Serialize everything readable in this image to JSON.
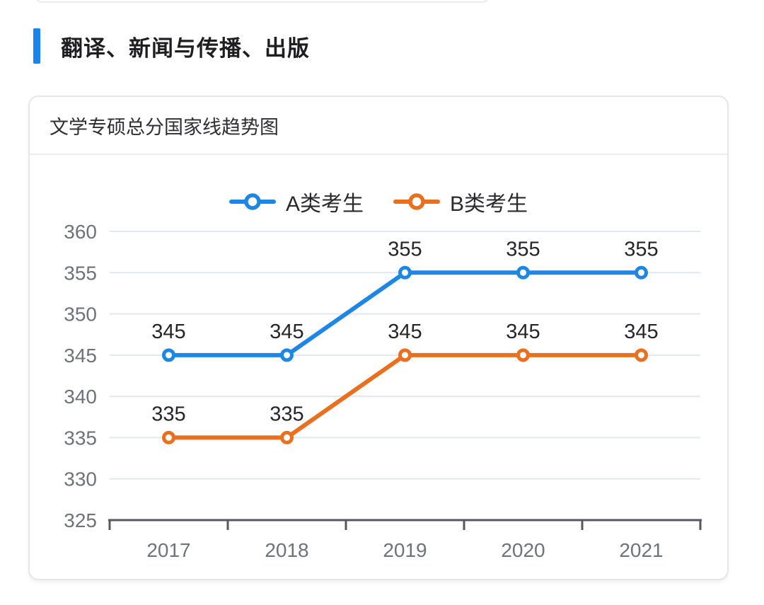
{
  "page": {
    "section_title": "翻译、新闻与传播、出版",
    "accent_color": "#1a84ee"
  },
  "card": {
    "title": "文学专硕总分国家线趋势图"
  },
  "chart_data": {
    "type": "line",
    "title": "文学专硕总分国家线趋势图",
    "categories": [
      "2017",
      "2018",
      "2019",
      "2020",
      "2021"
    ],
    "series": [
      {
        "name": "A类考生",
        "color": "#1e87e5",
        "values": [
          345,
          345,
          355,
          355,
          355
        ]
      },
      {
        "name": "B类考生",
        "color": "#e8701e",
        "values": [
          335,
          335,
          345,
          345,
          345
        ]
      }
    ],
    "ylim": [
      325,
      360
    ],
    "yticks": [
      325,
      330,
      335,
      340,
      345,
      350,
      355,
      360
    ],
    "grid": true,
    "legend_position": "top-center",
    "show_point_labels": true,
    "style": {
      "grid_line_color": "#e2e7f0",
      "axis_line_color": "#54585f",
      "tick_label_color": "#6f7379",
      "point_label_color": "#26262a"
    }
  }
}
